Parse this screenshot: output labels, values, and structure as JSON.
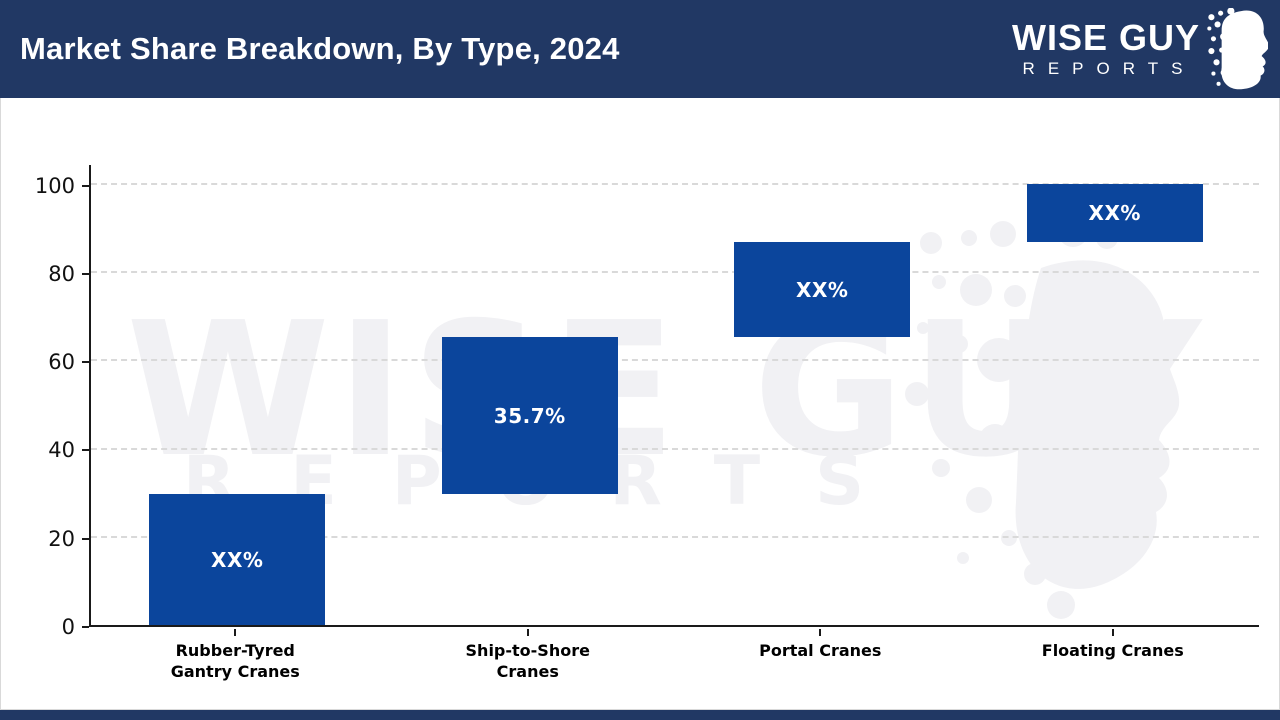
{
  "header": {
    "title": "Market Share Breakdown, By Type, 2024",
    "logo": {
      "line1": "WISE GUY",
      "line2": "REPORTS"
    }
  },
  "watermark": {
    "line1": "WISE GUY",
    "line2": "REPORTS"
  },
  "colors": {
    "navy": "#213864",
    "bar": "#0b459c",
    "grid": "#d9d9d9",
    "axis": "#1a1a1a",
    "watermark": "#f1f1f4",
    "bar_label": "#ffffff"
  },
  "chart_data": {
    "type": "bar",
    "subtype": "waterfall",
    "title": "Market Share Breakdown, By Type, 2024",
    "categories": [
      "Rubber-Tyred\nGantry Cranes",
      "Ship-to-Shore\nCranes",
      "Portal Cranes",
      "Floating Cranes"
    ],
    "segments": [
      {
        "category": "Rubber-Tyred Gantry Cranes",
        "start": 0,
        "end": 29.6,
        "label": "XX%"
      },
      {
        "category": "Ship-to-Shore Cranes",
        "start": 29.6,
        "end": 65.3,
        "label": "35.7%"
      },
      {
        "category": "Portal Cranes",
        "start": 65.3,
        "end": 86.7,
        "label": "XX%"
      },
      {
        "category": "Floating Cranes",
        "start": 86.7,
        "end": 100,
        "label": "XX%"
      }
    ],
    "yticks": [
      0,
      20,
      40,
      60,
      80,
      100
    ],
    "ylim": [
      0,
      104.7
    ],
    "xlabel": "",
    "ylabel": "",
    "grid": "horizontal-dashed",
    "legend": null
  }
}
